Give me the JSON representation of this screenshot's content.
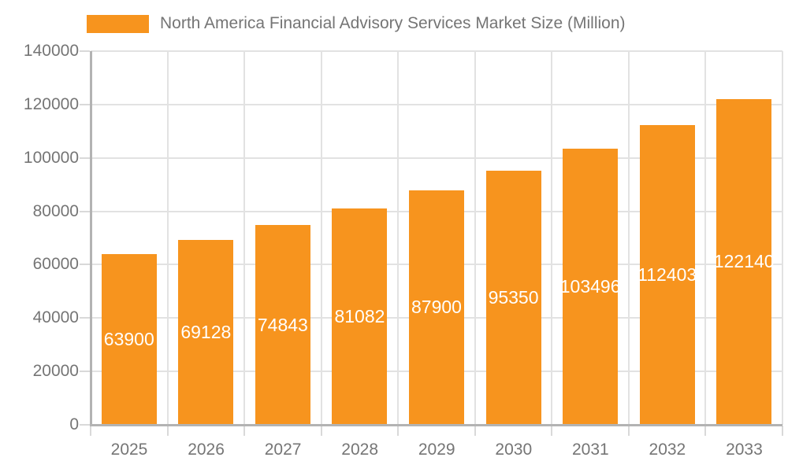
{
  "chart_data": {
    "type": "bar",
    "title": "North America Financial Advisory Services Market Size (Million)",
    "categories": [
      "2025",
      "2026",
      "2027",
      "2028",
      "2029",
      "2030",
      "2031",
      "2032",
      "2033"
    ],
    "values": [
      63900,
      69128,
      74843,
      81082,
      87900,
      95350,
      103496,
      112403,
      122140
    ],
    "xlabel": "",
    "ylabel": "",
    "ylim": [
      0,
      140000
    ],
    "yticks": [
      0,
      20000,
      40000,
      60000,
      80000,
      100000,
      120000,
      140000
    ],
    "grid": true,
    "legend_position": "top-left",
    "bar_color": "#f7941e",
    "value_label_color": "#ffffff",
    "text_color": "#757575",
    "grid_color": "#e2e2e2",
    "axis_color": "#b3b3b3"
  }
}
